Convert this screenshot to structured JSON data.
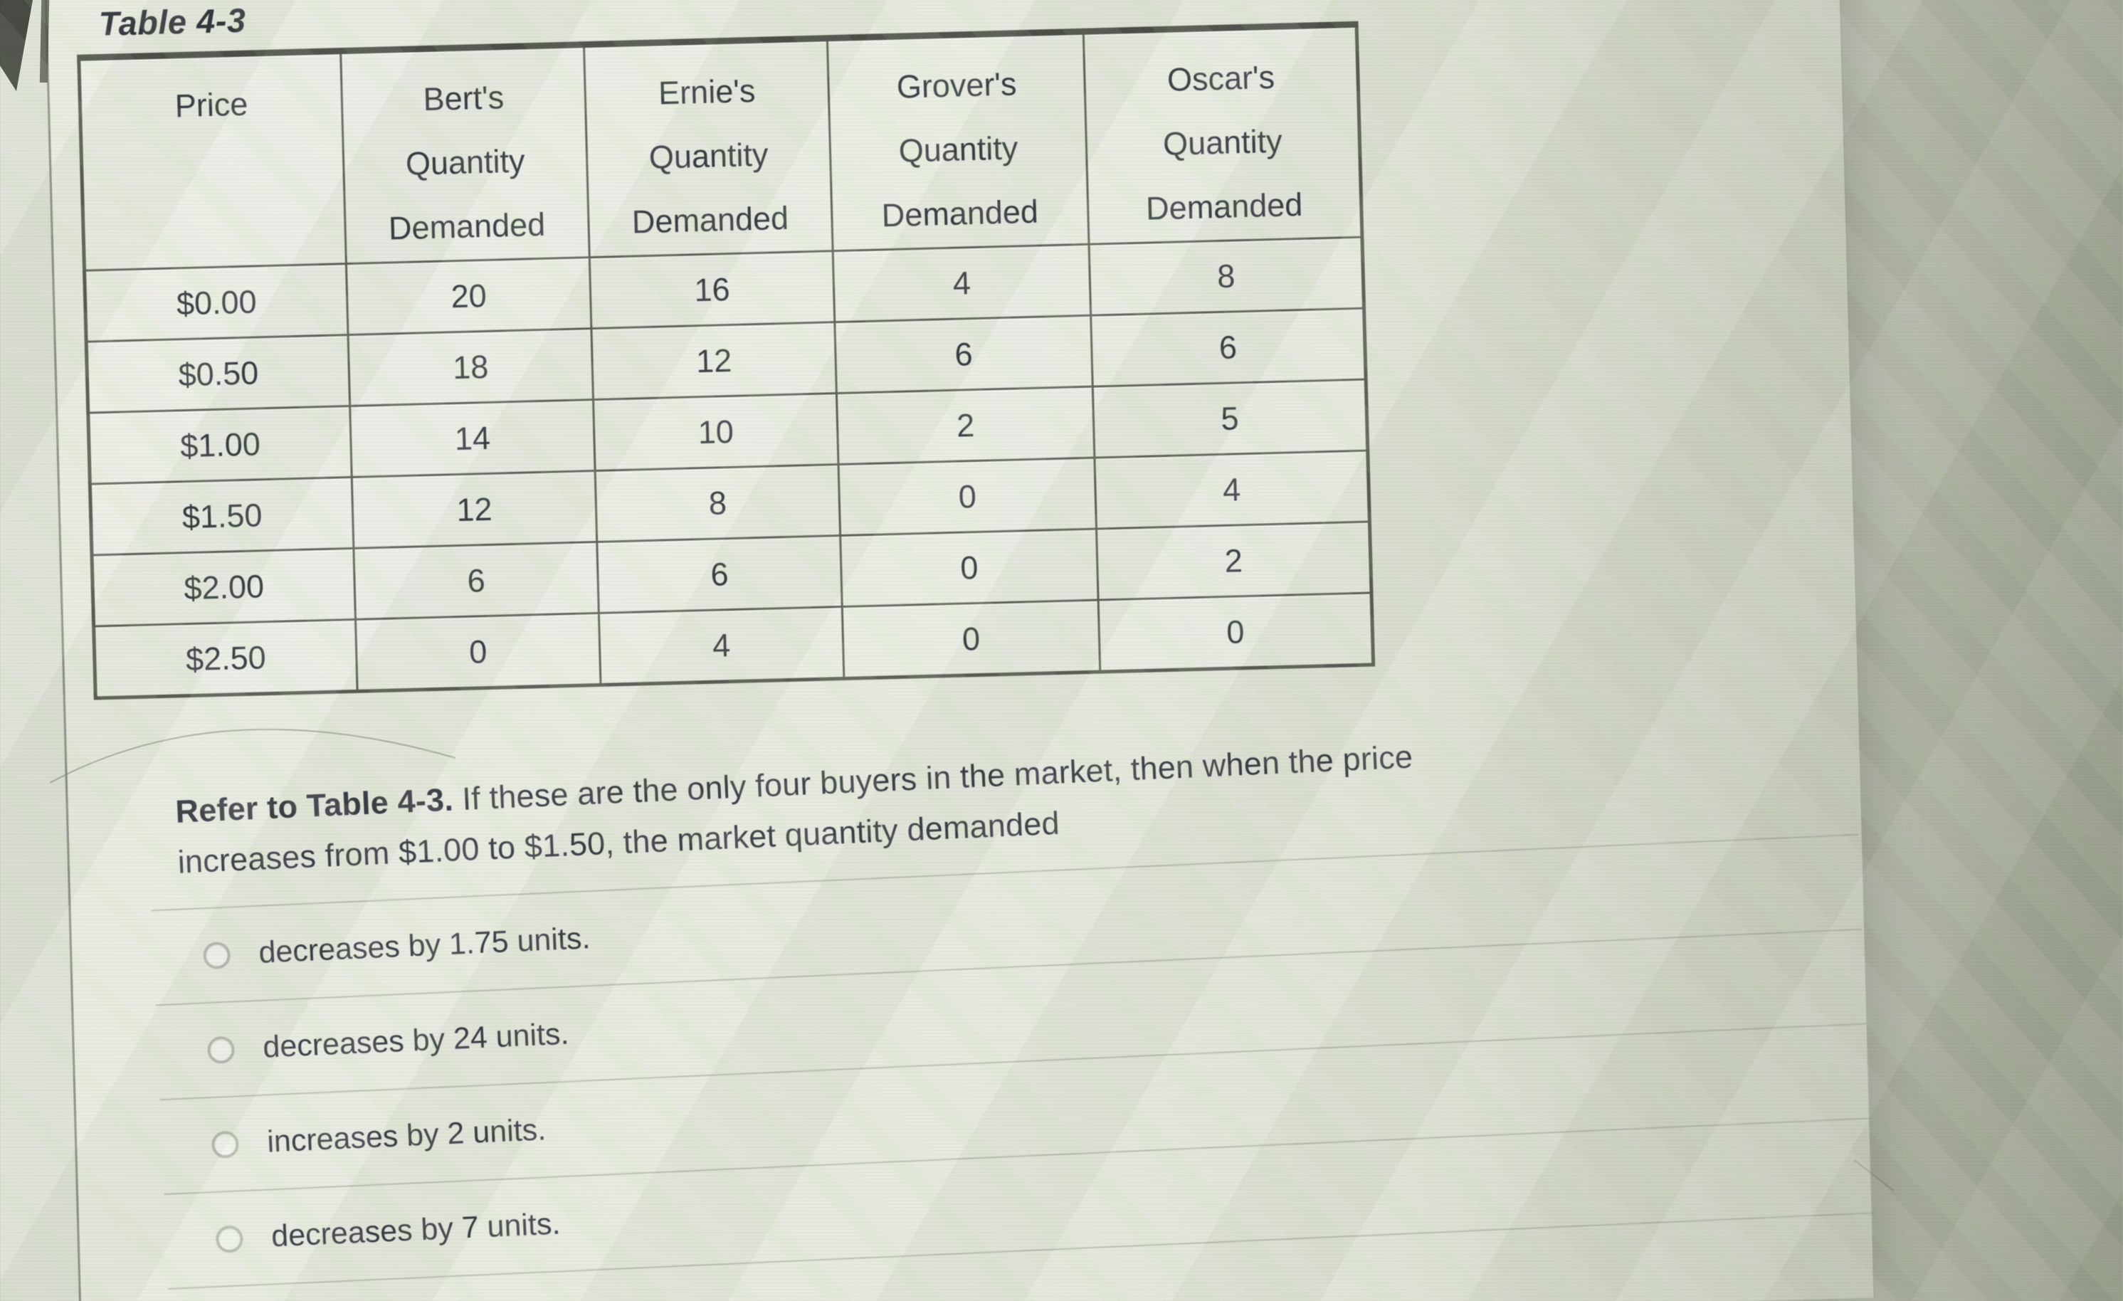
{
  "table": {
    "title": "Table 4-3",
    "columns": [
      "Price",
      "Bert's\nQuantity\nDemanded",
      "Ernie's\nQuantity\nDemanded",
      "Grover's\nQuantity\nDemanded",
      "Oscar's\nQuantity\nDemanded"
    ],
    "rows": [
      [
        "$0.00",
        "20",
        "16",
        "4",
        "8"
      ],
      [
        "$0.50",
        "18",
        "12",
        "6",
        "6"
      ],
      [
        "$1.00",
        "14",
        "10",
        "2",
        "5"
      ],
      [
        "$1.50",
        "12",
        "8",
        "0",
        "4"
      ],
      [
        "$2.00",
        "6",
        "6",
        "0",
        "2"
      ],
      [
        "$2.50",
        "0",
        "4",
        "0",
        "0"
      ]
    ]
  },
  "question": {
    "lead_bold": "Refer to Table 4-3.",
    "rest": " If these are the only four buyers in the market, then when the price\nincreases from $1.00 to $1.50, the market quantity demanded"
  },
  "options": [
    {
      "label": "decreases by 1.75 units."
    },
    {
      "label": "decreases by 24 units."
    },
    {
      "label": "increases by 2 units."
    },
    {
      "label": "decreases by 7 units."
    }
  ]
}
